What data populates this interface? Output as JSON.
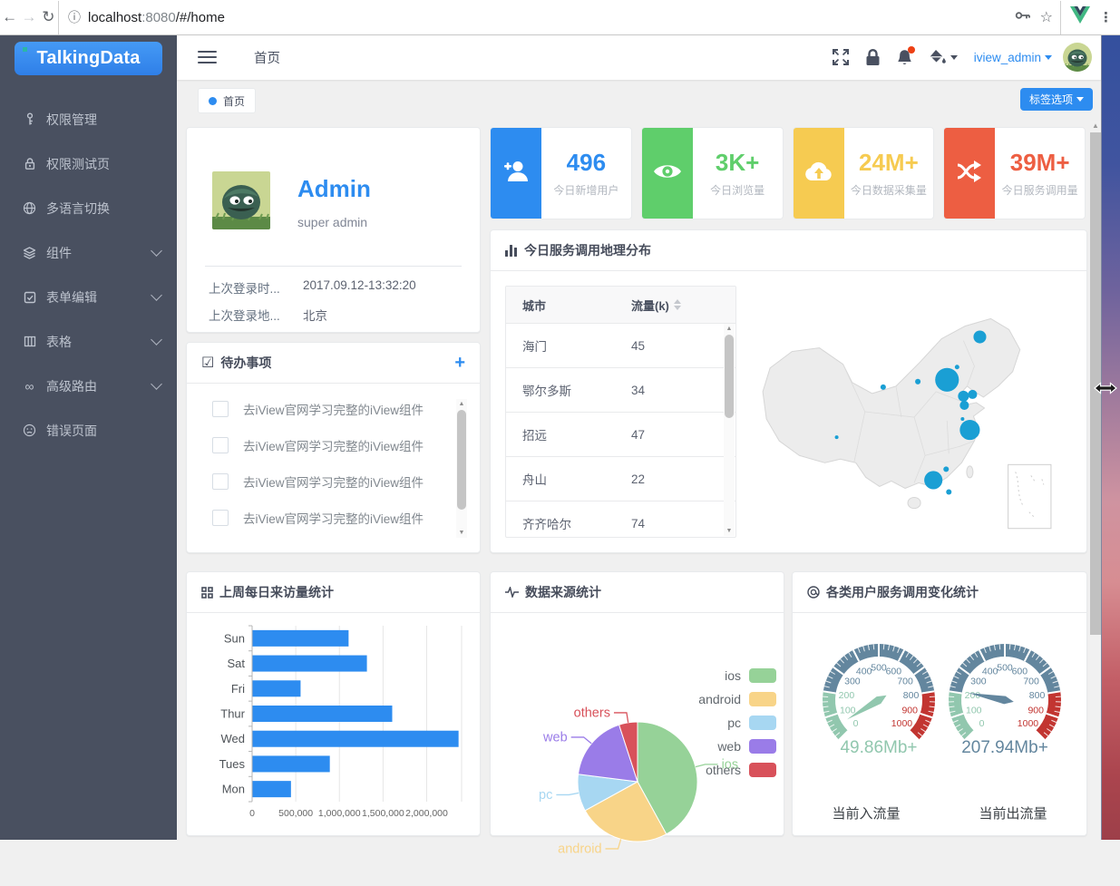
{
  "browser": {
    "url": {
      "host": "localhost",
      "port": ":8080",
      "path": "/#/home"
    }
  },
  "sidebar": {
    "logo": "TalkingData",
    "items": [
      {
        "label": "权限管理",
        "icon": "key-icon",
        "expandable": false
      },
      {
        "label": "权限测试页",
        "icon": "lock-person-icon",
        "expandable": false
      },
      {
        "label": "多语言切换",
        "icon": "globe-icon",
        "expandable": false
      },
      {
        "label": "组件",
        "icon": "layers-icon",
        "expandable": true
      },
      {
        "label": "表单编辑",
        "icon": "form-check-icon",
        "expandable": true
      },
      {
        "label": "表格",
        "icon": "table-icon",
        "expandable": true
      },
      {
        "label": "高级路由",
        "icon": "infinity-icon",
        "expandable": true
      },
      {
        "label": "错误页面",
        "icon": "sad-face-icon",
        "expandable": false
      }
    ]
  },
  "header": {
    "breadcrumb": "首页",
    "username": "iview_admin"
  },
  "tagbar": {
    "active_tag": "首页",
    "options_button": "标签选项"
  },
  "user_card": {
    "name": "Admin",
    "role": "super admin",
    "info": [
      {
        "label": "上次登录时...",
        "value": "2017.09.12-13:32:20"
      },
      {
        "label": "上次登录地...",
        "value": "北京"
      }
    ]
  },
  "info_cards": [
    {
      "value": "496",
      "label": "今日新增用户",
      "color": "#2d8cf0",
      "icon": "person-add-icon"
    },
    {
      "value": "3K+",
      "label": "今日浏览量",
      "color": "#5fce6b",
      "icon": "eye-icon"
    },
    {
      "value": "24M+",
      "label": "今日数据采集量",
      "color": "#f6cb51",
      "icon": "cloud-upload-icon"
    },
    {
      "value": "39M+",
      "label": "今日服务调用量",
      "color": "#ed5e42",
      "icon": "shuffle-icon"
    }
  ],
  "geo_card": {
    "title": "今日服务调用地理分布"
  },
  "todo_card": {
    "title": "待办事项",
    "add_label": "+",
    "items": [
      "去iView官网学习完整的iView组件",
      "去iView官网学习完整的iView组件",
      "去iView官网学习完整的iView组件",
      "去iView官网学习完整的iView组件"
    ]
  },
  "visits_card": {
    "title": "上周每日来访量统计"
  },
  "source_card": {
    "title": "数据来源统计"
  },
  "gauge_card": {
    "title": "各类用户服务调用变化统计"
  },
  "chart_data": [
    {
      "type": "table",
      "title": "今日服务调用地理分布",
      "headers": [
        "城市",
        "流量(k)"
      ],
      "rows": [
        [
          "海门",
          "45"
        ],
        [
          "鄂尔多斯",
          "34"
        ],
        [
          "招远",
          "47"
        ],
        [
          "舟山",
          "22"
        ],
        [
          "齐齐哈尔",
          "74"
        ]
      ]
    },
    {
      "type": "heatmap",
      "subtype": "geo-bubble-map",
      "title": "今日服务调用地理分布",
      "bubble_color": "#1a9fd4",
      "points": [
        {
          "x": 258,
          "y": 58,
          "r": 7
        },
        {
          "x": 233,
          "y": 91,
          "r": 2.5
        },
        {
          "x": 222,
          "y": 105,
          "r": 13
        },
        {
          "x": 190,
          "y": 107,
          "r": 3
        },
        {
          "x": 152,
          "y": 113,
          "r": 3
        },
        {
          "x": 240,
          "y": 123,
          "r": 6
        },
        {
          "x": 250,
          "y": 121,
          "r": 5
        },
        {
          "x": 241,
          "y": 133,
          "r": 5
        },
        {
          "x": 239,
          "y": 148,
          "r": 2
        },
        {
          "x": 247,
          "y": 160,
          "r": 11
        },
        {
          "x": 101,
          "y": 168,
          "r": 2
        },
        {
          "x": 221,
          "y": 203,
          "r": 3
        },
        {
          "x": 207,
          "y": 215,
          "r": 10
        },
        {
          "x": 224,
          "y": 228,
          "r": 3
        }
      ]
    },
    {
      "type": "bar",
      "title": "上周每日来访量统计",
      "orientation": "horizontal",
      "categories": [
        "Sun",
        "Sat",
        "Fri",
        "Thur",
        "Wed",
        "Tues",
        "Mon"
      ],
      "values": [
        1100000,
        1310000,
        550000,
        1600000,
        2360000,
        885000,
        440000
      ],
      "xticks": [
        "0",
        "500,000",
        "1,000,000",
        "1,500,000",
        "2,000,000"
      ],
      "xtick_values": [
        0,
        500000,
        1000000,
        1500000,
        2000000
      ],
      "xlim": [
        0,
        2400000
      ],
      "bar_color": "#2d8cf0",
      "grid": true
    },
    {
      "type": "pie",
      "title": "数据来源统计",
      "labels": [
        "ios",
        "android",
        "pc",
        "web",
        "others"
      ],
      "values": [
        42,
        25,
        10,
        18,
        5
      ],
      "colors": [
        "#96d298",
        "#f8d488",
        "#a7d7f2",
        "#9a7ce8",
        "#d8515a"
      ],
      "legend_position": "right-top",
      "start_angle": "top",
      "direction": "clockwise"
    },
    {
      "type": "gauge",
      "title": "各类用户服务调用变化统计",
      "min": 0,
      "max": 1000,
      "tick_step": 100,
      "zones": [
        {
          "upto": 0.2,
          "color": "#91c7ae"
        },
        {
          "upto": 0.8,
          "color": "#63869e"
        },
        {
          "upto": 1.0,
          "color": "#c23531"
        }
      ],
      "gauges": [
        {
          "name": "当前入流量",
          "value": 50,
          "display": "49.86Mb+"
        },
        {
          "name": "当前出流量",
          "value": 208,
          "display": "207.94Mb+"
        }
      ]
    }
  ]
}
